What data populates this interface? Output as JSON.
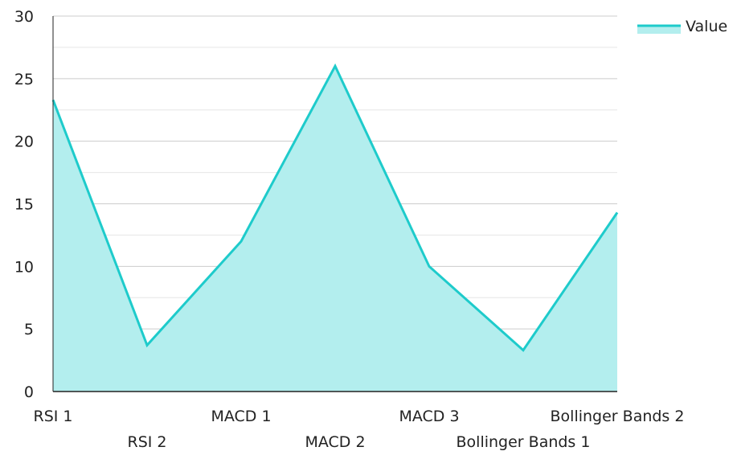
{
  "chart_data": {
    "type": "area",
    "categories": [
      "RSI 1",
      "RSI 2",
      "MACD 1",
      "MACD 2",
      "MACD 3",
      "Bollinger Bands 1",
      "Bollinger Bands 2"
    ],
    "series": [
      {
        "name": "Value",
        "values": [
          23.3,
          3.7,
          12,
          26,
          10,
          3.3,
          14.3
        ]
      }
    ],
    "ylim": [
      0,
      30
    ],
    "yticks": [
      0,
      5,
      10,
      15,
      20,
      25,
      30
    ],
    "minor_gridlines": true,
    "grid": true,
    "legend": "top-right",
    "colors": {
      "line": "#1ecbcb",
      "fill": "#b3eeee",
      "grid": "#cccccc",
      "axis": "#222222"
    }
  }
}
